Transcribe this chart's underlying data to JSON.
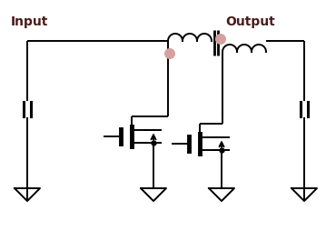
{
  "title_input": "Input",
  "title_output": "Output",
  "bg_color": "#ffffff",
  "line_color": "#000000",
  "dot_color": "#d4a0a0",
  "title_color": "#4a1a1a",
  "figsize": [
    3.59,
    2.65
  ],
  "dpi": 100
}
